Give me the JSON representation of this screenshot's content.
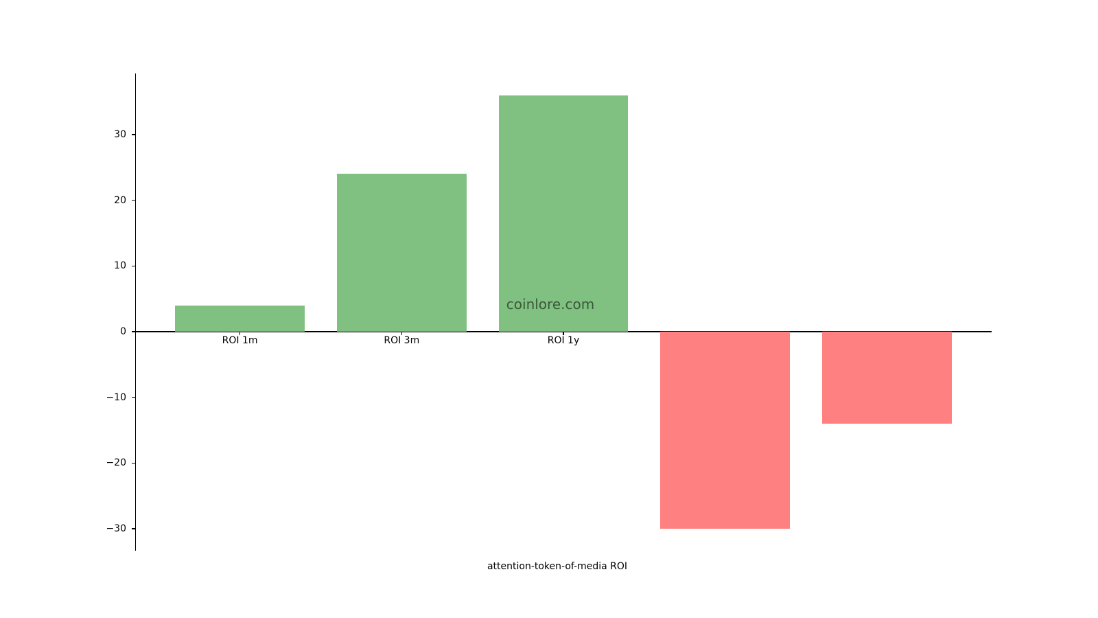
{
  "figure": {
    "watermark": "coinlore.com",
    "title": "attention-token-of-media ROI"
  },
  "chart_data": {
    "type": "bar",
    "title": "attention-token-of-media ROI",
    "xlabel": "attention-token-of-media ROI",
    "ylabel": "",
    "categories": [
      "ROI 1m",
      "ROI 3m",
      "ROI 1y",
      "",
      ""
    ],
    "values": [
      4,
      24,
      36,
      -30,
      -14
    ],
    "bar_colors": [
      "#80c080",
      "#80c080",
      "#80c080",
      "#ff8080",
      "#ff8080"
    ],
    "positive_color": "#80c080",
    "negative_color": "#ff8080",
    "yticks": [
      30,
      20,
      10,
      0,
      -10,
      -20,
      -30
    ],
    "ytick_labels": [
      "30",
      "20",
      "10",
      "0",
      "−10",
      "−20",
      "−30"
    ],
    "ylim": [
      -33.3,
      39.3
    ],
    "xlim": [
      -0.6475,
      4.6475
    ],
    "bar_width": 0.8,
    "grid": false,
    "legend": "none",
    "watermark": "coinlore.com"
  }
}
